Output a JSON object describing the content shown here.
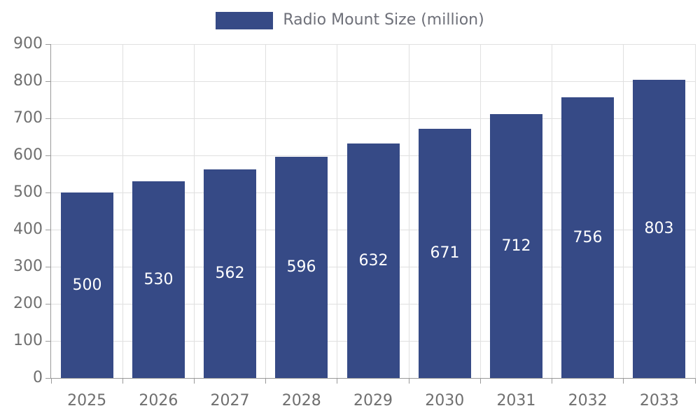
{
  "chart_data": {
    "type": "bar",
    "title": "",
    "legend": {
      "label": "Radio Mount Size (million)",
      "position": "top-center"
    },
    "categories": [
      "2025",
      "2026",
      "2027",
      "2028",
      "2029",
      "2030",
      "2031",
      "2032",
      "2033"
    ],
    "series": [
      {
        "name": "Radio Mount Size (million)",
        "values": [
          500,
          530,
          562,
          596,
          632,
          671,
          712,
          756,
          803
        ]
      }
    ],
    "xlabel": "",
    "ylabel": "",
    "ylim": [
      0,
      900
    ],
    "ytick_interval": 100,
    "yticks": [
      0,
      100,
      200,
      300,
      400,
      500,
      600,
      700,
      800,
      900
    ],
    "grid": {
      "horizontal": true,
      "vertical": true
    },
    "value_labels": {
      "visible": true,
      "position": "inside-center"
    },
    "colors": {
      "bar": "#364a86",
      "value_label_text": "#ffffff",
      "axis_text": "#6f6f6f",
      "legend_text": "#6e7079",
      "grid_line": "#e0e0e0",
      "axis_line": "#999999"
    }
  }
}
